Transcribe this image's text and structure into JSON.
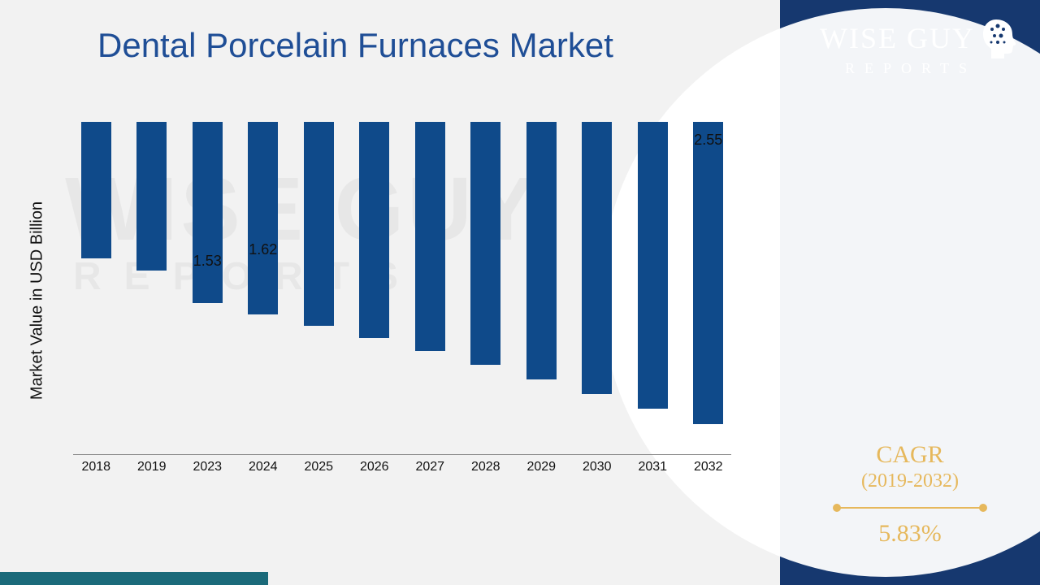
{
  "title": "Dental Porcelain Furnaces Market",
  "brand": {
    "line1": "WISE GUY",
    "line2": "REPORTS"
  },
  "watermark": {
    "line1": "WISE GUY",
    "line2": "REPORTS"
  },
  "cagr": {
    "label": "CAGR",
    "period": "(2019-2032)",
    "value": "5.83%",
    "color": "#e6b85c"
  },
  "colors": {
    "page_bg": "#f2f2f2",
    "sidebar_bg": "#16386f",
    "circle_bg": "#ffffff",
    "title_color": "#1f4e96",
    "bar_color": "#0f4a8a",
    "axis_color": "#888888",
    "text_color": "#111111",
    "bottom_strip": "#1b6a7a"
  },
  "chart": {
    "type": "bar",
    "ylabel": "Market Value in USD Billion",
    "ylim": [
      0,
      2.8
    ],
    "bar_width": 0.76,
    "label_fontsize": 18,
    "category_fontsize": 16,
    "ylabel_fontsize": 20,
    "categories": [
      "2018",
      "2019",
      "2023",
      "2024",
      "2025",
      "2026",
      "2027",
      "2028",
      "2029",
      "2030",
      "2031",
      "2032"
    ],
    "values": [
      1.15,
      1.25,
      1.53,
      1.62,
      1.72,
      1.82,
      1.93,
      2.05,
      2.17,
      2.29,
      2.42,
      2.55
    ],
    "show_value_label_index": [
      2,
      3,
      11
    ],
    "value_labels": {
      "2": "1.53",
      "3": "1.62",
      "11": "2.55"
    }
  }
}
